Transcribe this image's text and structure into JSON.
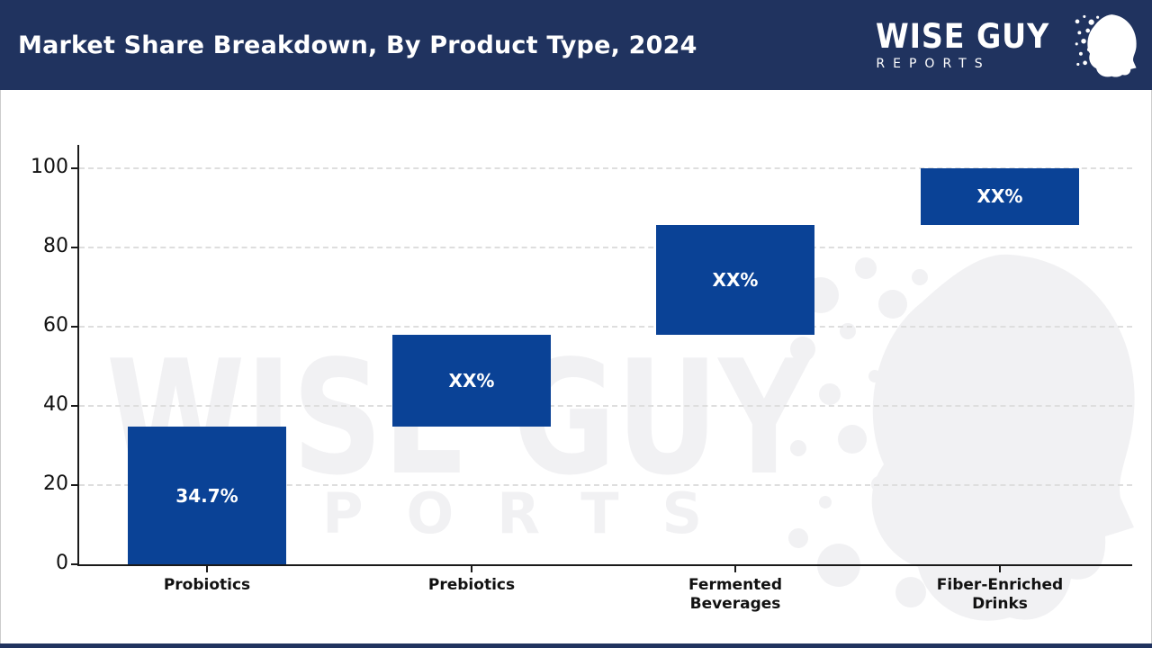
{
  "header": {
    "title": "Market Share Breakdown, By Product Type, 2024",
    "logo": {
      "wordmark": "WISE GUY",
      "subtext": "REPORTS"
    }
  },
  "watermark": {
    "wordmark": "WISE GUY",
    "subtext": "REPORTS"
  },
  "colors": {
    "header_bg": "#20335f",
    "bar": "#0a4296",
    "bar_label": "#ffffff",
    "gridline": "#dedede",
    "axis": "#1a1a1a",
    "watermark": "#f1f1f3"
  },
  "chart_data": {
    "type": "bar",
    "variant": "waterfall",
    "title": "Market Share Breakdown, By Product Type, 2024",
    "xlabel": "",
    "ylabel": "",
    "ylim": [
      0,
      106
    ],
    "yticks": [
      0,
      20,
      40,
      60,
      80,
      100
    ],
    "grid": "horizontal-dashed",
    "legend": "none",
    "categories": [
      "Probiotics",
      "Prebiotics",
      "Fermented Beverages",
      "Fiber-Enriched Drinks"
    ],
    "segments": [
      {
        "category": "Probiotics",
        "start": 0,
        "end": 34.7,
        "label": "34.7%"
      },
      {
        "category": "Prebiotics",
        "start": 34.7,
        "end": 58,
        "label": "XX%"
      },
      {
        "category": "Fermented Beverages",
        "start": 58,
        "end": 85.7,
        "label": "XX%"
      },
      {
        "category": "Fiber-Enriched Drinks",
        "start": 85.7,
        "end": 100,
        "label": "XX%"
      }
    ]
  }
}
